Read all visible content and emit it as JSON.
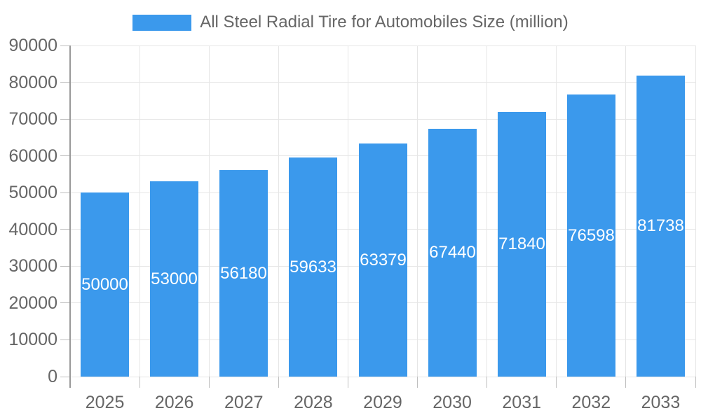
{
  "legend": {
    "label": "All Steel Radial Tire for Automobiles Size (million)"
  },
  "chart_data": {
    "type": "bar",
    "title": "All Steel Radial Tire for Automobiles Size (million)",
    "categories": [
      "2025",
      "2026",
      "2027",
      "2028",
      "2029",
      "2030",
      "2031",
      "2032",
      "2033"
    ],
    "series": [
      {
        "name": "All Steel Radial Tire for Automobiles Size (million)",
        "values": [
          50000,
          53000,
          56180,
          59633,
          63379,
          67440,
          71840,
          76598,
          81738
        ]
      }
    ],
    "value_labels": [
      "50000",
      "53000",
      "56180",
      "59633",
      "63379",
      "67440",
      "71840",
      "76598",
      "81738"
    ],
    "xlabel": "",
    "ylabel": "",
    "ylim": [
      0,
      90000
    ],
    "ytick_interval": 10000,
    "ytick_labels": [
      "0",
      "10000",
      "20000",
      "30000",
      "40000",
      "50000",
      "60000",
      "70000",
      "80000",
      "90000"
    ],
    "grid": true,
    "legend_position": "top-center",
    "bar_label_position": "inside-center",
    "colors": {
      "bar": "#3B99EC",
      "grid": "#E6E6E6",
      "axis_line": "#999999",
      "tick": "#BFBFBF",
      "axis_text": "#666666",
      "value_text": "#FFFFFF",
      "background": "#FFFFFF"
    }
  }
}
